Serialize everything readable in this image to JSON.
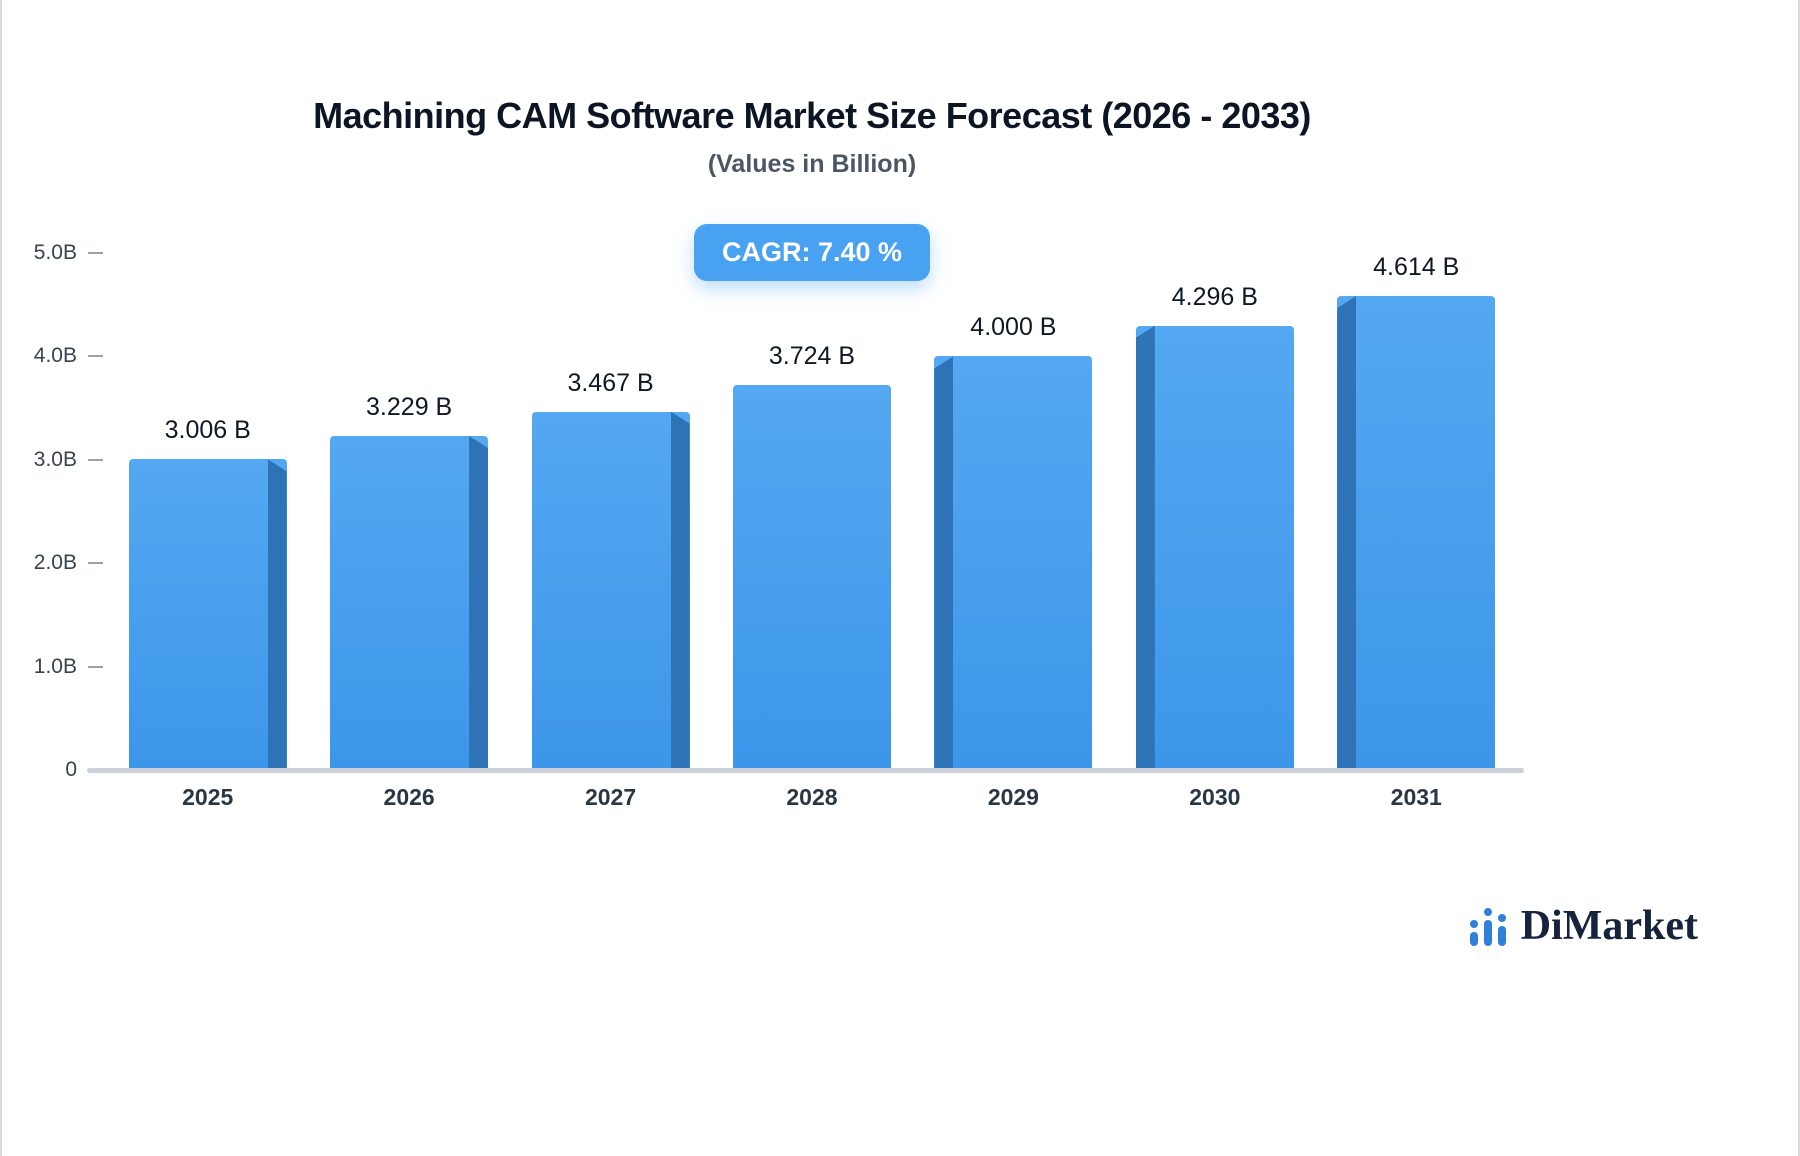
{
  "chart_data": {
    "type": "bar",
    "title": "Machining CAM Software Market Size Forecast (2026 - 2033)",
    "subtitle": "(Values in Billion)",
    "cagr_label": "CAGR: 7.40 %",
    "categories": [
      "2025",
      "2026",
      "2027",
      "2028",
      "2029",
      "2030",
      "2031"
    ],
    "values": [
      3.006,
      3.229,
      3.467,
      3.724,
      4.0,
      4.296,
      4.614
    ],
    "value_labels": [
      "3.006 B",
      "3.229 B",
      "3.467 B",
      "3.724 B",
      "4.000 B",
      "4.296 B",
      "4.614 B"
    ],
    "xlabel": "",
    "ylabel": "",
    "ylim": [
      0,
      5.0
    ],
    "yticks": [
      0,
      1.0,
      2.0,
      3.0,
      4.0,
      5.0
    ],
    "ytick_labels": [
      "0",
      "1.0B",
      "2.0B",
      "3.0B",
      "4.0B",
      "5.0B"
    ],
    "grid": false,
    "legend": false,
    "colors": {
      "bar_top": "#54a8f1",
      "bar_bottom": "#3c96e9",
      "bar_side": "#2d73b5",
      "badge": "#49a1f1",
      "axis_line": "#ccd2d8",
      "title_text": "#0c1523"
    }
  },
  "logo": {
    "text": "DiMarket",
    "icon": "bar-chart-icon",
    "icon_color": "#2f7fdb"
  }
}
